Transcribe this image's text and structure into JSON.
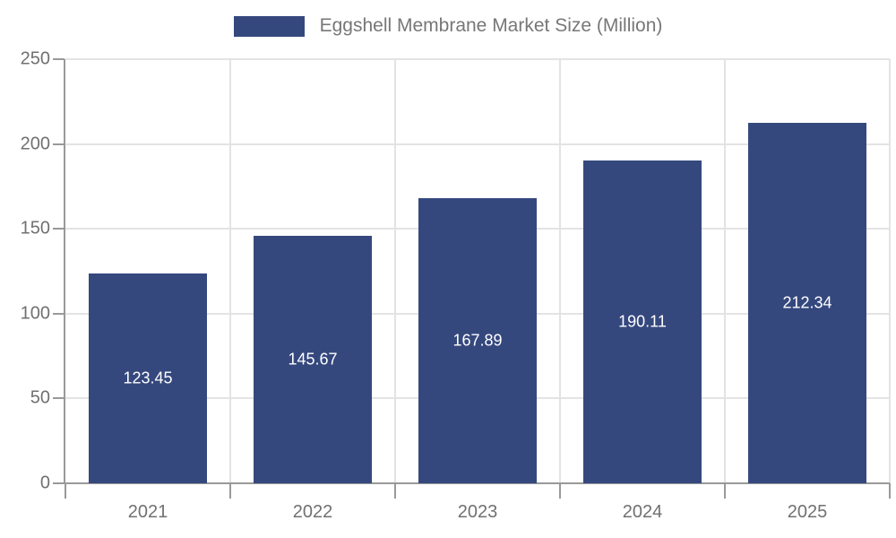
{
  "chart_data": {
    "type": "bar",
    "title": "",
    "categories": [
      "2021",
      "2022",
      "2023",
      "2024",
      "2025"
    ],
    "series": [
      {
        "name": "Eggshell Membrane Market Size (Million)",
        "values": [
          123.45,
          145.67,
          167.89,
          190.11,
          212.34
        ],
        "value_labels": [
          "123.45",
          "145.67",
          "167.89",
          "190.11",
          "212.34"
        ]
      }
    ],
    "xlabel": "",
    "ylabel": "",
    "ylim": [
      0,
      250
    ],
    "yticks": [
      0,
      50,
      100,
      150,
      200,
      250
    ],
    "ytick_labels": [
      "0",
      "50",
      "100",
      "150",
      "200",
      "250"
    ],
    "grid": true,
    "legend_position": "top-center",
    "value_label_position": "inside-center",
    "colors": {
      "bar": "#35487E",
      "grid": "#e3e3e3",
      "axis": "#999999",
      "tick_label": "#707070",
      "value_label": "#ffffff",
      "legend_text": "#777777",
      "background": "#ffffff"
    }
  }
}
